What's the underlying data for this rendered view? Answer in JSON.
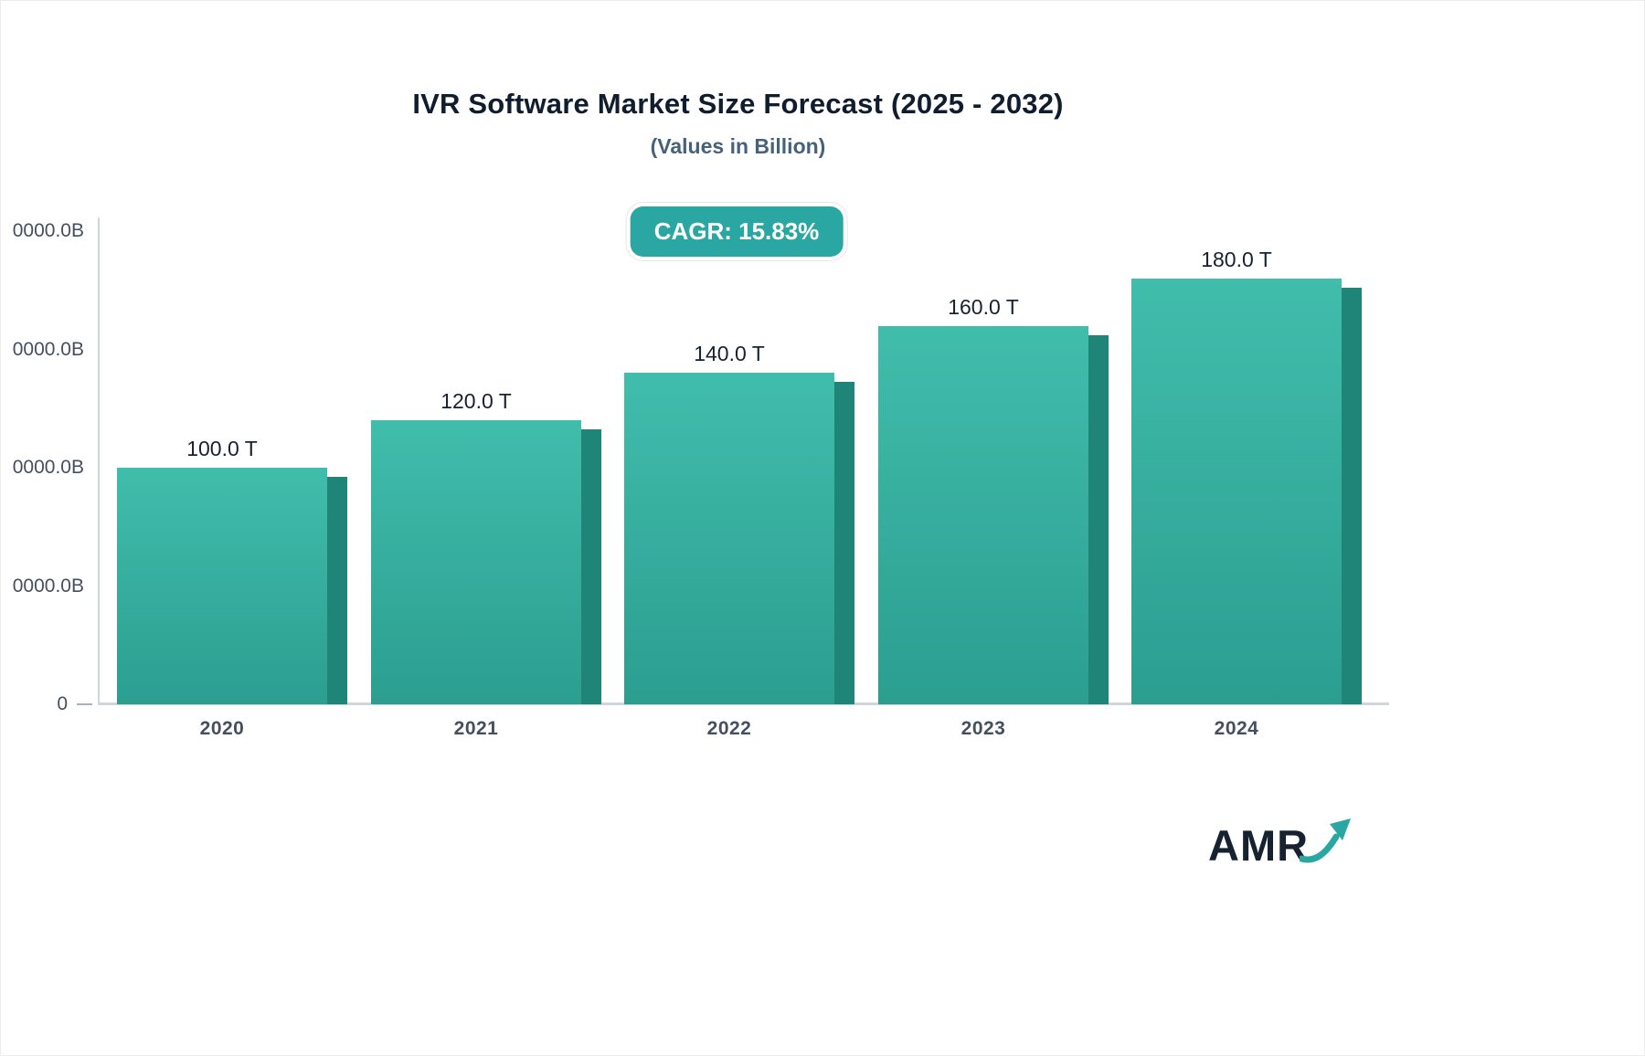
{
  "header": {
    "title": "IVR Software Market Size Forecast (2025 - 2032)",
    "subtitle": "(Values in Billion)",
    "cagr_badge": "CAGR: 15.83%"
  },
  "logo": {
    "text": "AMR"
  },
  "chart_data": {
    "type": "bar",
    "title": "IVR Software Market Size Forecast (2025 - 2032)",
    "subtitle": "(Values in Billion)",
    "annotation": "CAGR: 15.83%",
    "categories": [
      "2020",
      "2021",
      "2022",
      "2023",
      "2024"
    ],
    "values": [
      100.0,
      120.0,
      140.0,
      160.0,
      180.0
    ],
    "bar_labels": [
      "100.0 T",
      "120.0 T",
      "140.0 T",
      "160.0 T",
      "180.0 T"
    ],
    "ylim": [
      0,
      200
    ],
    "yticks": [
      {
        "value": 200,
        "label": "0000.0B"
      },
      {
        "value": 150,
        "label": "0000.0B"
      },
      {
        "value": 100,
        "label": "0000.0B"
      },
      {
        "value": 50,
        "label": "0000.0B"
      },
      {
        "value": 0,
        "label": "0"
      }
    ],
    "grid": false,
    "legend": false,
    "colors": {
      "bar_top": "#41bdac",
      "bar_bottom": "#2b9e90",
      "bar_side": "#1f8578",
      "badge": "#2aa7a2",
      "title": "#101d2e",
      "subtitle": "#46627a",
      "axis_text": "#44505f",
      "bar_label_text": "#16222f",
      "axis_line": "#d0d6db",
      "logo_text": "#16222f"
    }
  }
}
